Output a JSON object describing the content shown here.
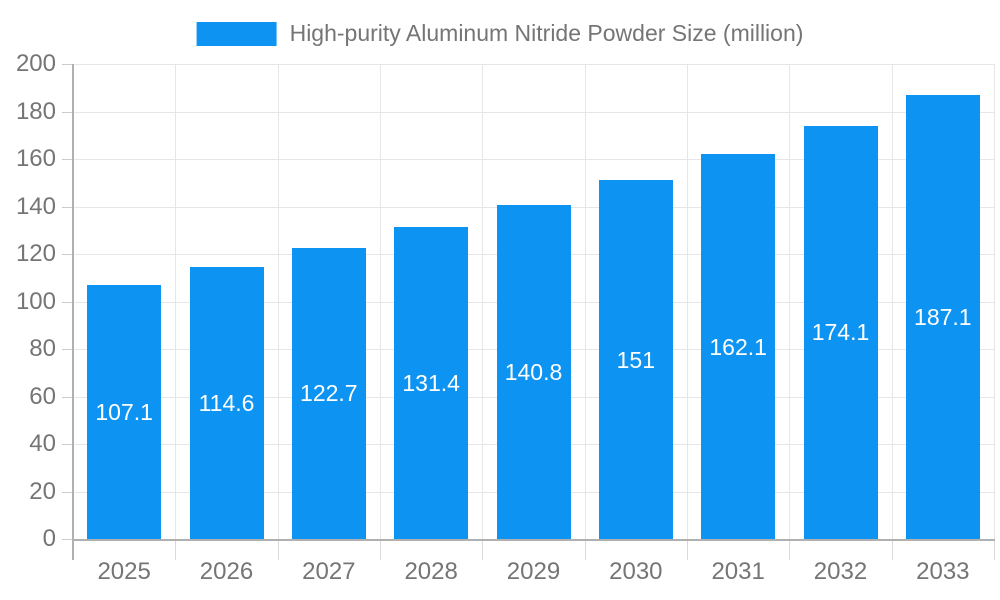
{
  "chart_data": {
    "type": "bar",
    "series_name": "High-purity Aluminum Nitride Powder Size (million)",
    "categories": [
      "2025",
      "2026",
      "2027",
      "2028",
      "2029",
      "2030",
      "2031",
      "2032",
      "2033"
    ],
    "values": [
      107.1,
      114.6,
      122.7,
      131.4,
      140.8,
      151,
      162.1,
      174.1,
      187.1
    ],
    "bar_value_labels": [
      "107.1",
      "114.6",
      "122.7",
      "131.4",
      "140.8",
      "151",
      "162.1",
      "174.1",
      "187.1"
    ],
    "ylim": [
      0,
      200
    ],
    "ytick_step": 20,
    "ytick_labels": [
      "0",
      "20",
      "40",
      "60",
      "80",
      "100",
      "120",
      "140",
      "160",
      "180",
      "200"
    ],
    "grid": true,
    "legend_position": "top",
    "colors": {
      "bar": "#0d94f2",
      "axis_text": "#757575",
      "gridline": "#e6e6e6",
      "axis_line": "#b0b0b0",
      "tick": "#cccccc",
      "x_tick": "#d9d9d9",
      "bar_label": "#ffffff",
      "background": "#ffffff"
    }
  }
}
